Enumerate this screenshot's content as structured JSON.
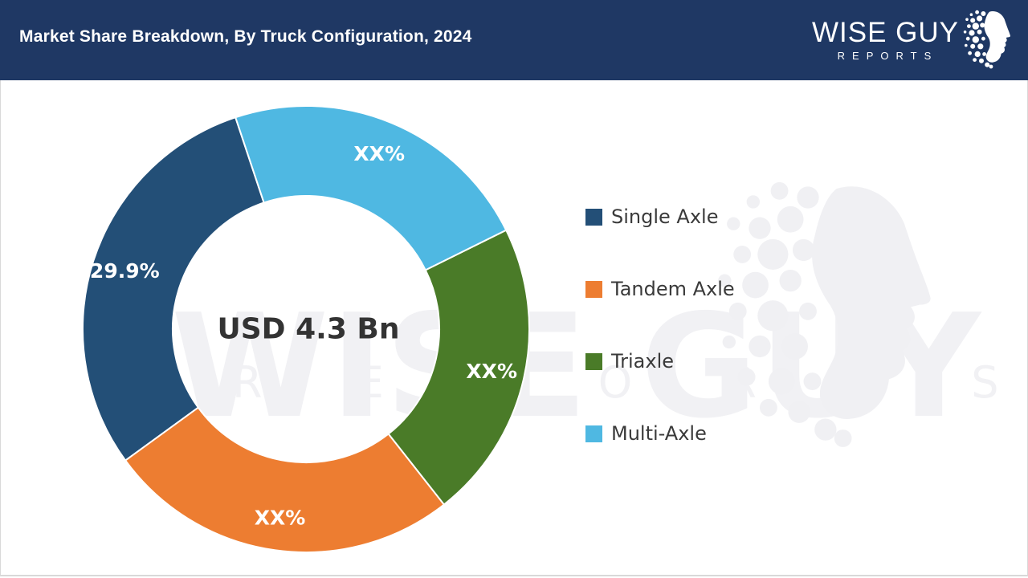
{
  "header": {
    "title": "Market Share Breakdown, By Truck Configuration, 2024",
    "background_color": "#1F3864",
    "logo": {
      "line1": "WISE GUY",
      "line2": "REPORTS"
    }
  },
  "watermark": {
    "word": "WISE GUY",
    "reports": "R E P O R T S"
  },
  "chart_data": {
    "type": "pie",
    "subtype": "donut",
    "title": "Market Share Breakdown, By Truck Configuration, 2024",
    "center_label": "USD 4.3 Bn",
    "start_angle_deg": 108.4,
    "direction": "counterclockwise",
    "legend_position": "right",
    "slices": [
      {
        "label": "Single Axle",
        "value_pct": 29.9,
        "display_label": "29.9%",
        "color": "#234F77"
      },
      {
        "label": "Tandem Axle",
        "value_pct": 25.6,
        "display_label": "XX%",
        "color": "#ED7D31"
      },
      {
        "label": "Triaxle",
        "value_pct": 21.7,
        "display_label": "XX%",
        "color": "#4A7B28"
      },
      {
        "label": "Multi-Axle",
        "value_pct": 22.8,
        "display_label": "XX%",
        "color": "#4FB8E2"
      }
    ]
  }
}
